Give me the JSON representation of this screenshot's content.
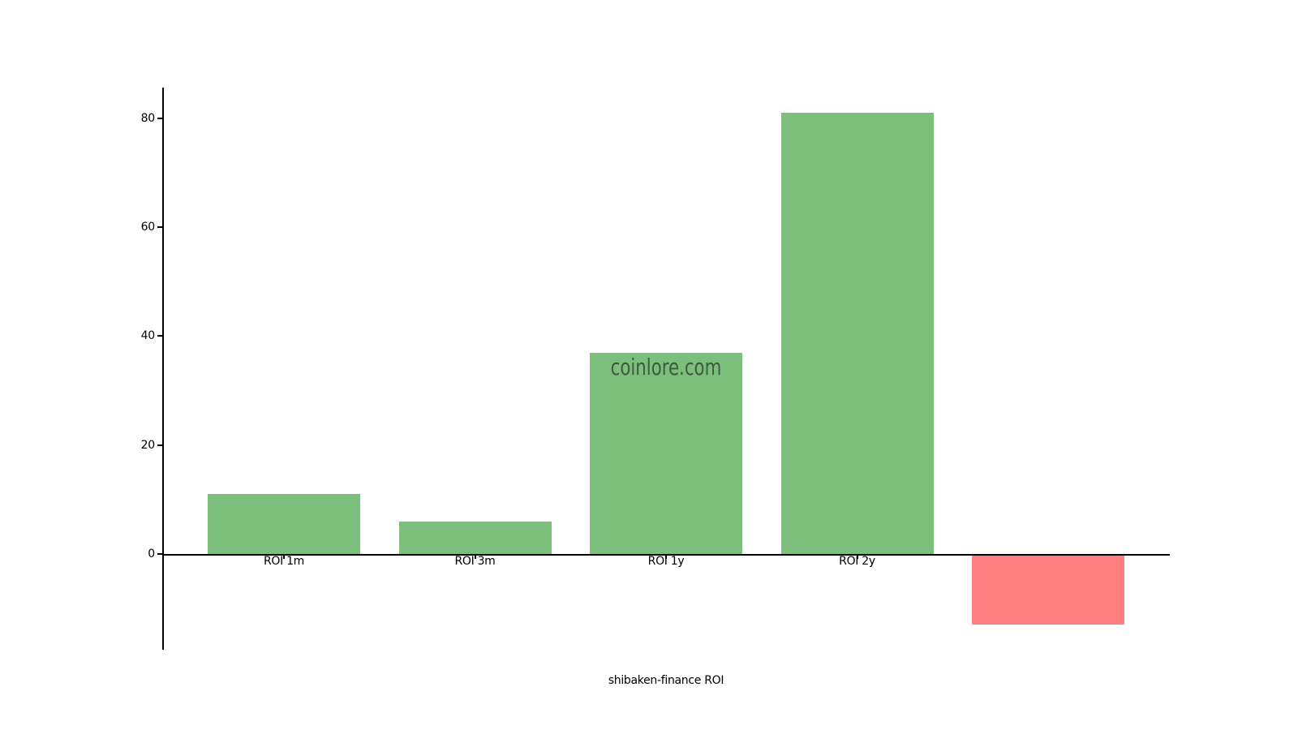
{
  "chart_data": {
    "type": "bar",
    "xlabel": "shibaken-finance ROI",
    "ylabel": "",
    "categories": [
      "ROI 1m",
      "ROI 3m",
      "ROI 1y",
      "ROI 2y",
      ""
    ],
    "values": [
      11,
      6,
      37,
      81,
      -13
    ],
    "yticks": [
      0,
      20,
      40,
      60,
      80
    ],
    "ylim": [
      -17.5,
      85.7
    ],
    "grid": false,
    "legend": false,
    "bar_color_positive": "#7cbf7d",
    "bar_color_negative": "#ff8080",
    "axis_color": "#000000",
    "text_color": "#000000",
    "watermark": "coinlore.com",
    "watermark_color": "#3e5a40",
    "background_color": "#ffffff"
  }
}
